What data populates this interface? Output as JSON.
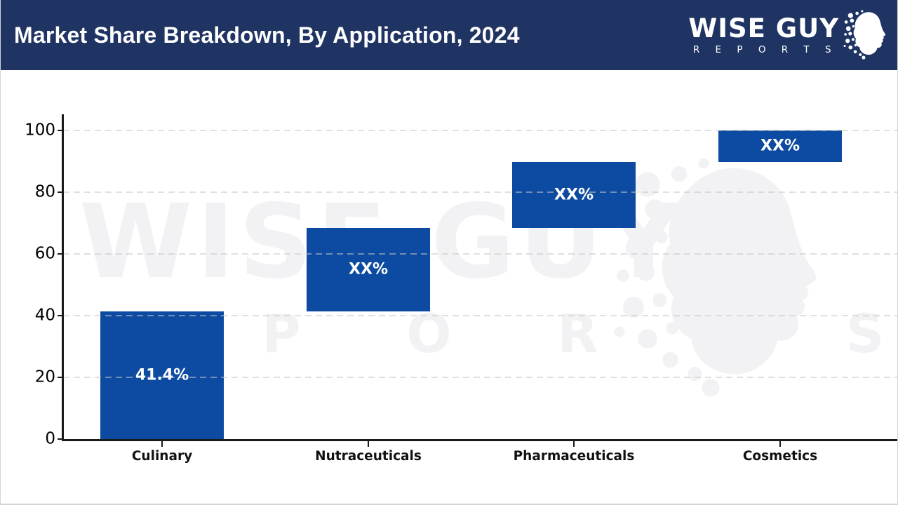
{
  "header": {
    "title": "Market Share Breakdown, By Application, 2024",
    "brand": {
      "line1": "WISE GUY",
      "line2": "R E P O R T S",
      "icon": "face-profile-dots-icon"
    }
  },
  "watermark": {
    "line1": "WISE GUY",
    "line2": "P O R T S",
    "icon": "face-profile-dots-icon"
  },
  "colors": {
    "header_bg": "#1f3463",
    "bar": "#0c4ba1",
    "bar_label": "#ffffff",
    "grid": "#d9d9d9",
    "axis": "#1a1a1a",
    "watermark": "#f2f2f4"
  },
  "chart_data": {
    "type": "bar",
    "subtype": "waterfall",
    "title": "Market Share Breakdown, By Application, 2024",
    "categories": [
      "Culinary",
      "Nutraceuticals",
      "Pharmaceuticals",
      "Cosmetics"
    ],
    "segments": [
      {
        "category": "Culinary",
        "start": 0,
        "end": 41.4,
        "label": "41.4%"
      },
      {
        "category": "Nutraceuticals",
        "start": 41.4,
        "end": 68.4,
        "label": "XX%"
      },
      {
        "category": "Pharmaceuticals",
        "start": 68.4,
        "end": 89.8,
        "label": "XX%"
      },
      {
        "category": "Cosmetics",
        "start": 89.8,
        "end": 100,
        "label": "XX%"
      }
    ],
    "yticks": [
      0,
      20,
      40,
      60,
      80,
      100
    ],
    "ylim": [
      0,
      100
    ],
    "xlabel": "",
    "ylabel": "",
    "grid": "dashed-horizontal",
    "legend": "none"
  }
}
